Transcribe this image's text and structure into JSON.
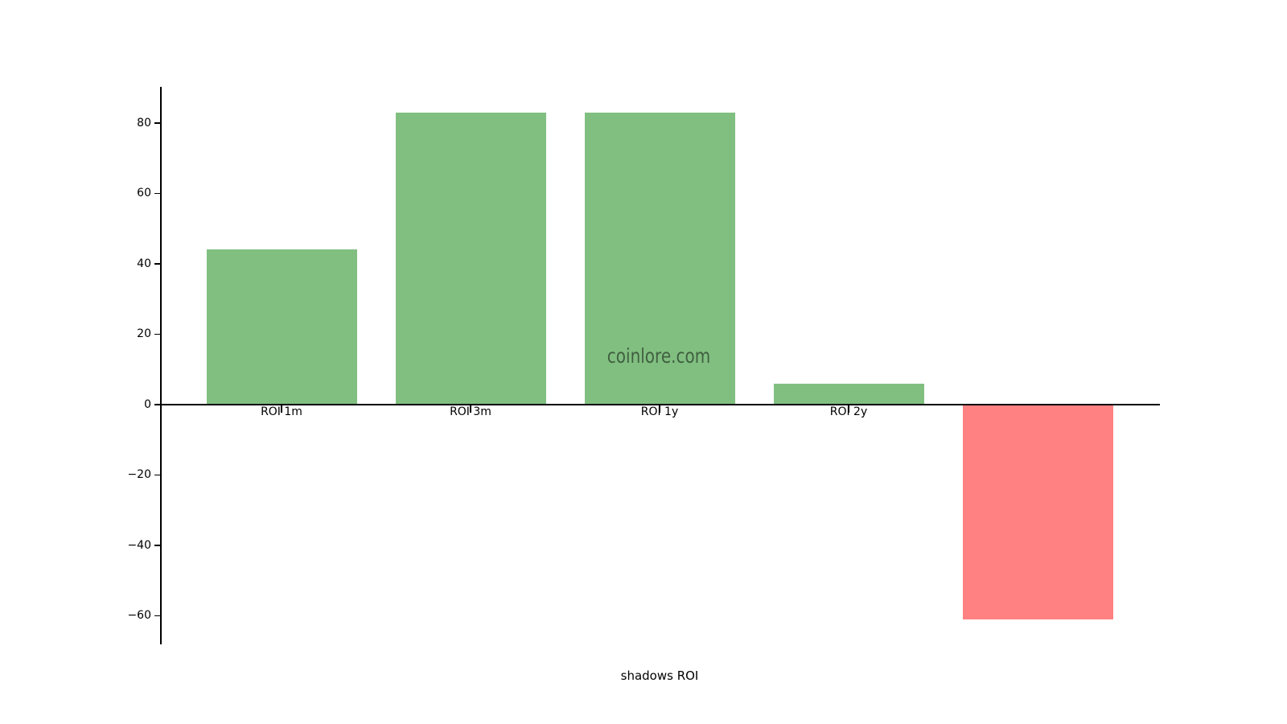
{
  "chart_data": {
    "type": "bar",
    "title": "",
    "xlabel": "shadows ROI",
    "ylabel": "",
    "categories": [
      "ROI 1m",
      "ROI 3m",
      "ROI 1y",
      "ROI 2y",
      ""
    ],
    "values": [
      44,
      83,
      83,
      6,
      -61
    ],
    "positive_color": "#81bf81",
    "negative_color": "#ff8181",
    "axis_color": "#000000",
    "yticks": [
      80,
      60,
      40,
      20,
      0,
      -20,
      -40,
      -60
    ],
    "ylim": [
      -68,
      90.5
    ],
    "grid": false,
    "legend_position": "none"
  },
  "watermark": {
    "text": "coinlore.com"
  }
}
